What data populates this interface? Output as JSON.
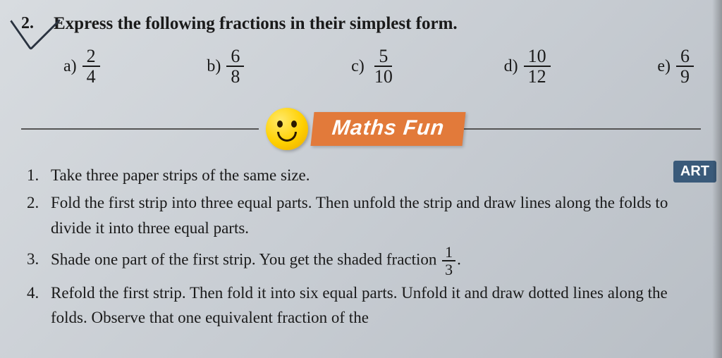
{
  "question": {
    "number": "2.",
    "text": "Express the following fractions in their simplest form.",
    "checkmark_color": "#2a3340",
    "options": [
      {
        "label": "a)",
        "num": "2",
        "den": "4"
      },
      {
        "label": "b)",
        "num": "6",
        "den": "8"
      },
      {
        "label": "c)",
        "num": "5",
        "den": "10"
      },
      {
        "label": "d)",
        "num": "10",
        "den": "12"
      },
      {
        "label": "e)",
        "num": "6",
        "den": "9"
      }
    ]
  },
  "banner": {
    "text": "Maths Fun",
    "bg_color": "#e27a3a",
    "text_color": "#ffffff",
    "emoji_bg": "#ffd000"
  },
  "badge": {
    "text": "ART",
    "bg_color": "#3a5a7a",
    "text_color": "#ffffff"
  },
  "steps": [
    {
      "num": "1.",
      "text": "Take three paper strips of the same size."
    },
    {
      "num": "2.",
      "text": "Fold the first strip into three equal parts. Then unfold the strip and draw lines along the folds to divide it into three equal parts."
    },
    {
      "num": "3.",
      "text_before": "Shade one part of the first strip. You get the shaded fraction ",
      "frac_num": "1",
      "frac_den": "3",
      "text_after": "."
    },
    {
      "num": "4.",
      "text": "Refold the first strip. Then fold it into six equal parts. Unfold it and draw dotted lines along the folds. Observe that one equivalent fraction of the"
    }
  ],
  "colors": {
    "page_bg_light": "#d8dce0",
    "page_bg_dark": "#b8bec5",
    "text_color": "#1a1a1a",
    "rule_color": "#555555"
  },
  "typography": {
    "body_font": "Georgia, Times New Roman, serif",
    "question_fontsize": 25,
    "option_fontsize": 24,
    "fraction_fontsize": 26,
    "banner_fontsize": 30,
    "step_fontsize": 23
  }
}
